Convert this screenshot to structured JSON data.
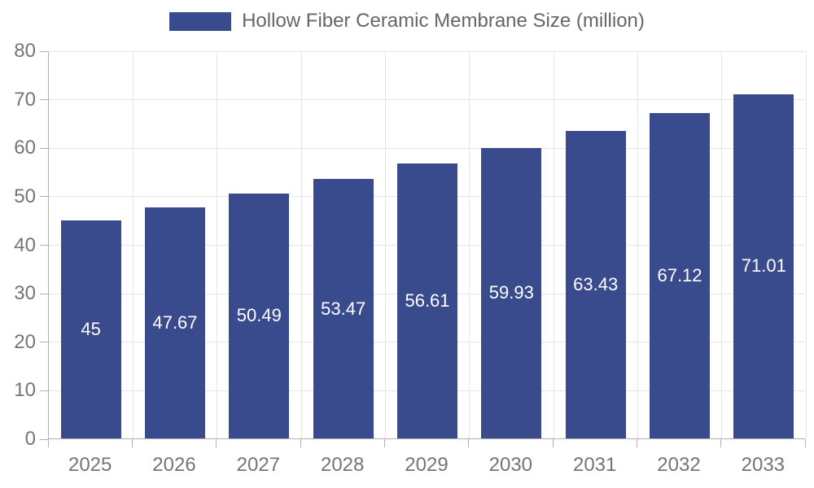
{
  "legend": {
    "label": "Hollow Fiber Ceramic Membrane Size (million)"
  },
  "chart_data": {
    "type": "bar",
    "title": "Hollow Fiber Ceramic Membrane Size (million)",
    "categories": [
      "2025",
      "2026",
      "2027",
      "2028",
      "2029",
      "2030",
      "2031",
      "2032",
      "2033"
    ],
    "values": [
      45,
      47.67,
      50.49,
      53.47,
      56.61,
      59.93,
      63.43,
      67.12,
      71.01
    ],
    "value_labels": [
      "45",
      "47.67",
      "50.49",
      "53.47",
      "56.61",
      "59.93",
      "63.43",
      "67.12",
      "71.01"
    ],
    "xlabel": "",
    "ylabel": "",
    "ylim": [
      0,
      80
    ],
    "yticks": [
      0,
      10,
      20,
      30,
      40,
      50,
      60,
      70,
      80
    ],
    "grid": true,
    "legend_position": "top",
    "value_label_position": "inside-middle",
    "colors": {
      "bar": "#3A4B8D",
      "grid": "#e5e5e5",
      "axis": "#b0b0b0",
      "tick_text": "#757575",
      "legend_text": "#666666",
      "value_text": "#ffffff",
      "background": "#ffffff"
    }
  }
}
